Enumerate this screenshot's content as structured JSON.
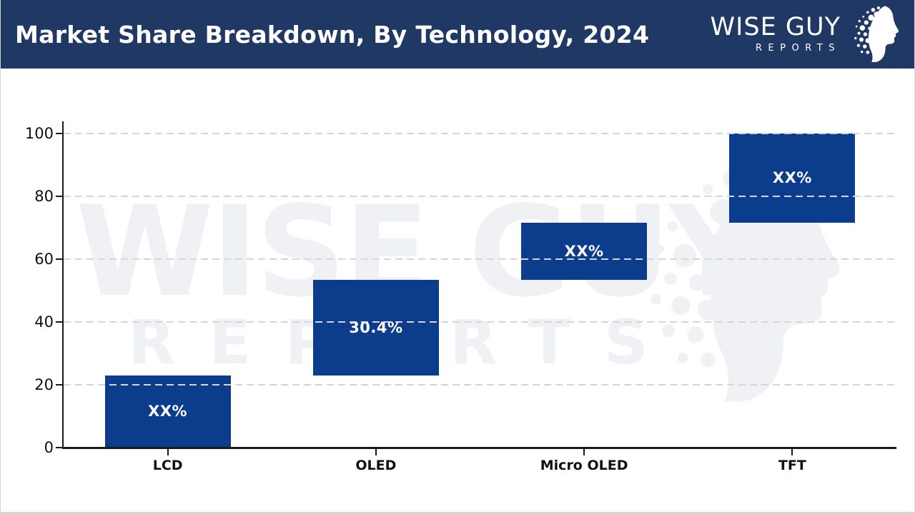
{
  "header": {
    "background": "#1f3864",
    "title": "Market Share Breakdown, By Technology, 2024",
    "logo": {
      "brand": "WISE GUY",
      "sub": "REPORTS"
    }
  },
  "watermark": {
    "brand": "WISE GUY",
    "sub": "REPORTS"
  },
  "chart_data": {
    "type": "bar",
    "subtype": "waterfall",
    "title": "Market Share Breakdown, By Technology, 2024",
    "categories": [
      "LCD",
      "OLED",
      "Micro OLED",
      "TFT"
    ],
    "segments": [
      {
        "category": "LCD",
        "start": 0,
        "end": 23,
        "label": "XX%"
      },
      {
        "category": "OLED",
        "start": 23,
        "end": 53.4,
        "label": "30.4%"
      },
      {
        "category": "Micro OLED",
        "start": 53.4,
        "end": 71.7,
        "label": "XX%"
      },
      {
        "category": "TFT",
        "start": 71.7,
        "end": 100,
        "label": "XX%"
      }
    ],
    "yticks": [
      0,
      20,
      40,
      60,
      80,
      100
    ],
    "ylim": [
      0,
      104
    ],
    "xlabel": "",
    "ylabel": "",
    "grid": "horizontal-dashed",
    "legend": null,
    "bar_color": "#0c3c8c",
    "bar_label_color": "#ffffff",
    "axis_color": "#1a1a1a",
    "grid_color": "#d6d6d6"
  }
}
